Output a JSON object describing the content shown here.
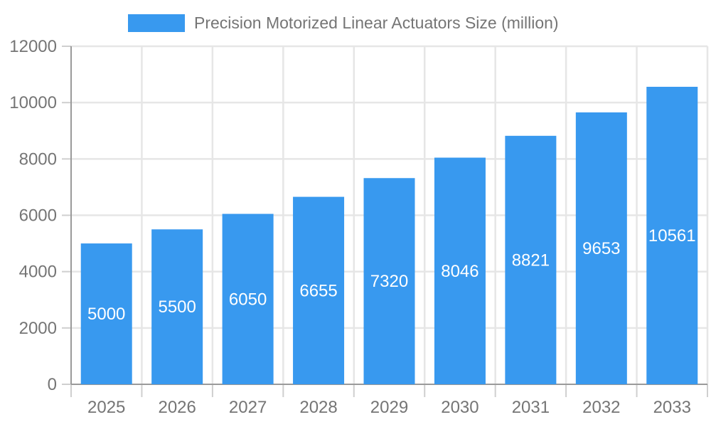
{
  "legend": {
    "items": [
      {
        "label": "Precision Motorized Linear Actuators Size (million)",
        "color": "#3899EF"
      }
    ]
  },
  "chart_data": {
    "type": "bar",
    "title": "Precision Motorized Linear Actuators Size (million)",
    "categories": [
      "2025",
      "2026",
      "2027",
      "2028",
      "2029",
      "2030",
      "2031",
      "2032",
      "2033"
    ],
    "series": [
      {
        "name": "Precision Motorized Linear Actuators Size (million)",
        "color": "#3899EF",
        "values": [
          5000,
          5500,
          6050,
          6655,
          7320,
          8046,
          8821,
          9653,
          10561
        ]
      }
    ],
    "xlabel": "",
    "ylabel": "",
    "ylim": [
      0,
      12000
    ],
    "ytick_step": 2000,
    "ytick_labels": [
      "0",
      "2000",
      "4000",
      "6000",
      "8000",
      "10000",
      "12000"
    ],
    "grid": true,
    "legend_position": "top",
    "value_labels": "inside-center",
    "value_label_color": "#FFFFFF",
    "colors": {
      "grid": "#E6E6E6",
      "axis": "#9A9A9A",
      "tick": "#CFCFCF",
      "label": "#757575",
      "background": "#FFFFFF"
    }
  }
}
